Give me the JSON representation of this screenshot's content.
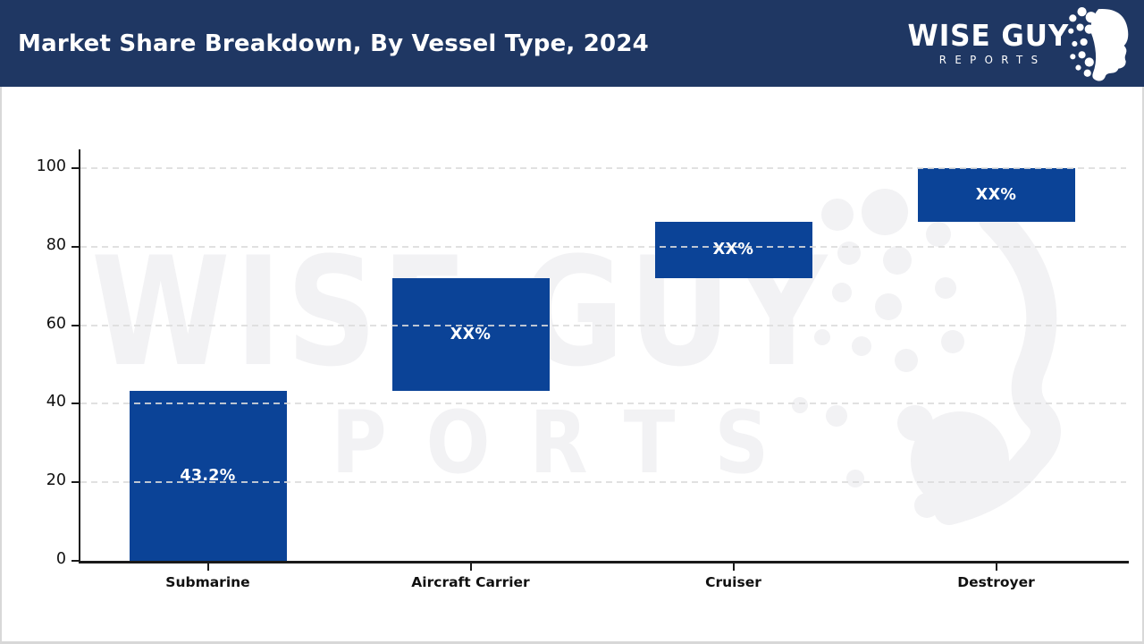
{
  "header": {
    "title": "Market Share Breakdown, By Vessel Type, 2024",
    "logo": {
      "wordmark": "WISE GUY",
      "subtitle": "REPORTS"
    }
  },
  "watermark": {
    "wordmark": "WISE GUY",
    "subtitle": "REPORTS"
  },
  "colors": {
    "header_bg": "#1f3763",
    "bar_fill": "#0b4397",
    "bar_label": "#ffffff",
    "grid_line": "#dcdcdc",
    "axis_line": "#1a1a1a",
    "tick_label": "#111111",
    "watermark": "#f2f2f4",
    "page_border": "#d8d8d8",
    "background": "#ffffff"
  },
  "chart_data": {
    "type": "bar",
    "variant": "waterfall",
    "title": "Market Share Breakdown, By Vessel Type, 2024",
    "categories": [
      "Submarine",
      "Aircraft Carrier",
      "Cruiser",
      "Destroyer"
    ],
    "segments": [
      {
        "category": "Submarine",
        "start": 0,
        "end": 43.2,
        "label": "43.2%"
      },
      {
        "category": "Aircraft Carrier",
        "start": 43.2,
        "end": 72.0,
        "label": "XX%"
      },
      {
        "category": "Cruiser",
        "start": 72.0,
        "end": 86.4,
        "label": "XX%"
      },
      {
        "category": "Destroyer",
        "start": 86.4,
        "end": 100.0,
        "label": "XX%"
      }
    ],
    "xlabel": "",
    "ylabel": "",
    "ylim": [
      0,
      100
    ],
    "yticks": [
      0,
      20,
      40,
      60,
      80,
      100
    ],
    "grid": "horizontal-dashed",
    "legend": "none"
  }
}
